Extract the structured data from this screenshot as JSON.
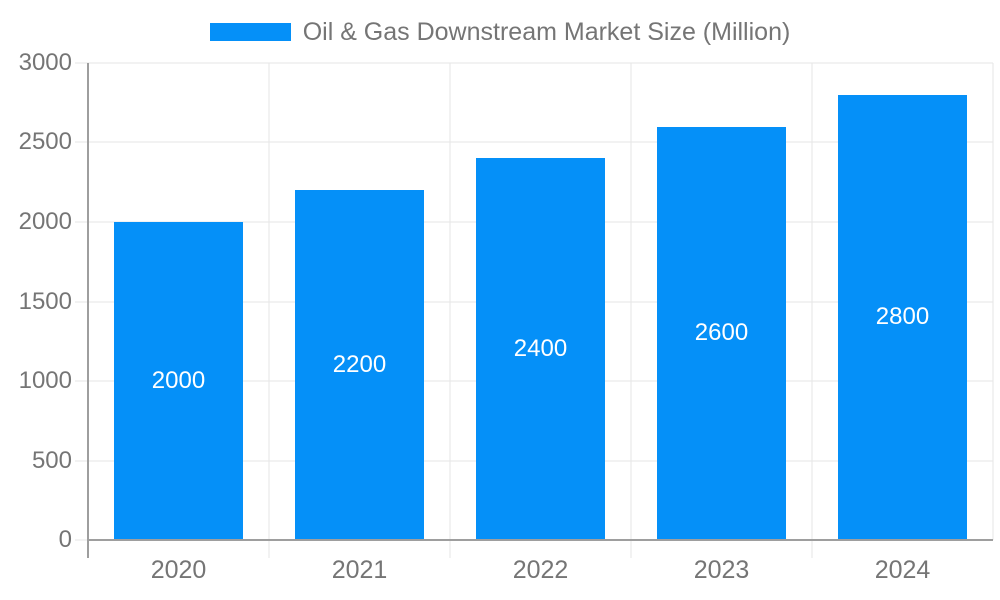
{
  "legend": {
    "label": "Oil & Gas Downstream Market Size (Million)"
  },
  "chart_data": {
    "type": "bar",
    "title": "Oil & Gas Downstream Market Size (Million)",
    "series_name": "Oil & Gas Downstream Market Size (Million)",
    "categories": [
      "2020",
      "2021",
      "2022",
      "2023",
      "2024"
    ],
    "values": [
      2000,
      2200,
      2400,
      2600,
      2800
    ],
    "value_labels": [
      "2000",
      "2200",
      "2400",
      "2600",
      "2800"
    ],
    "xlabel": "",
    "ylabel": "",
    "ylim": [
      0,
      3000
    ],
    "yticks": [
      0,
      500,
      1000,
      1500,
      2000,
      2500,
      3000
    ],
    "grid": true,
    "legend_position": "top-center",
    "bar_color": "#0590f8",
    "value_label_color": "#ffffff",
    "axis_text_color": "#757575",
    "grid_color": "#e6e6e6",
    "axis_line_color": "#9e9e9e",
    "background_color": "#ffffff"
  }
}
